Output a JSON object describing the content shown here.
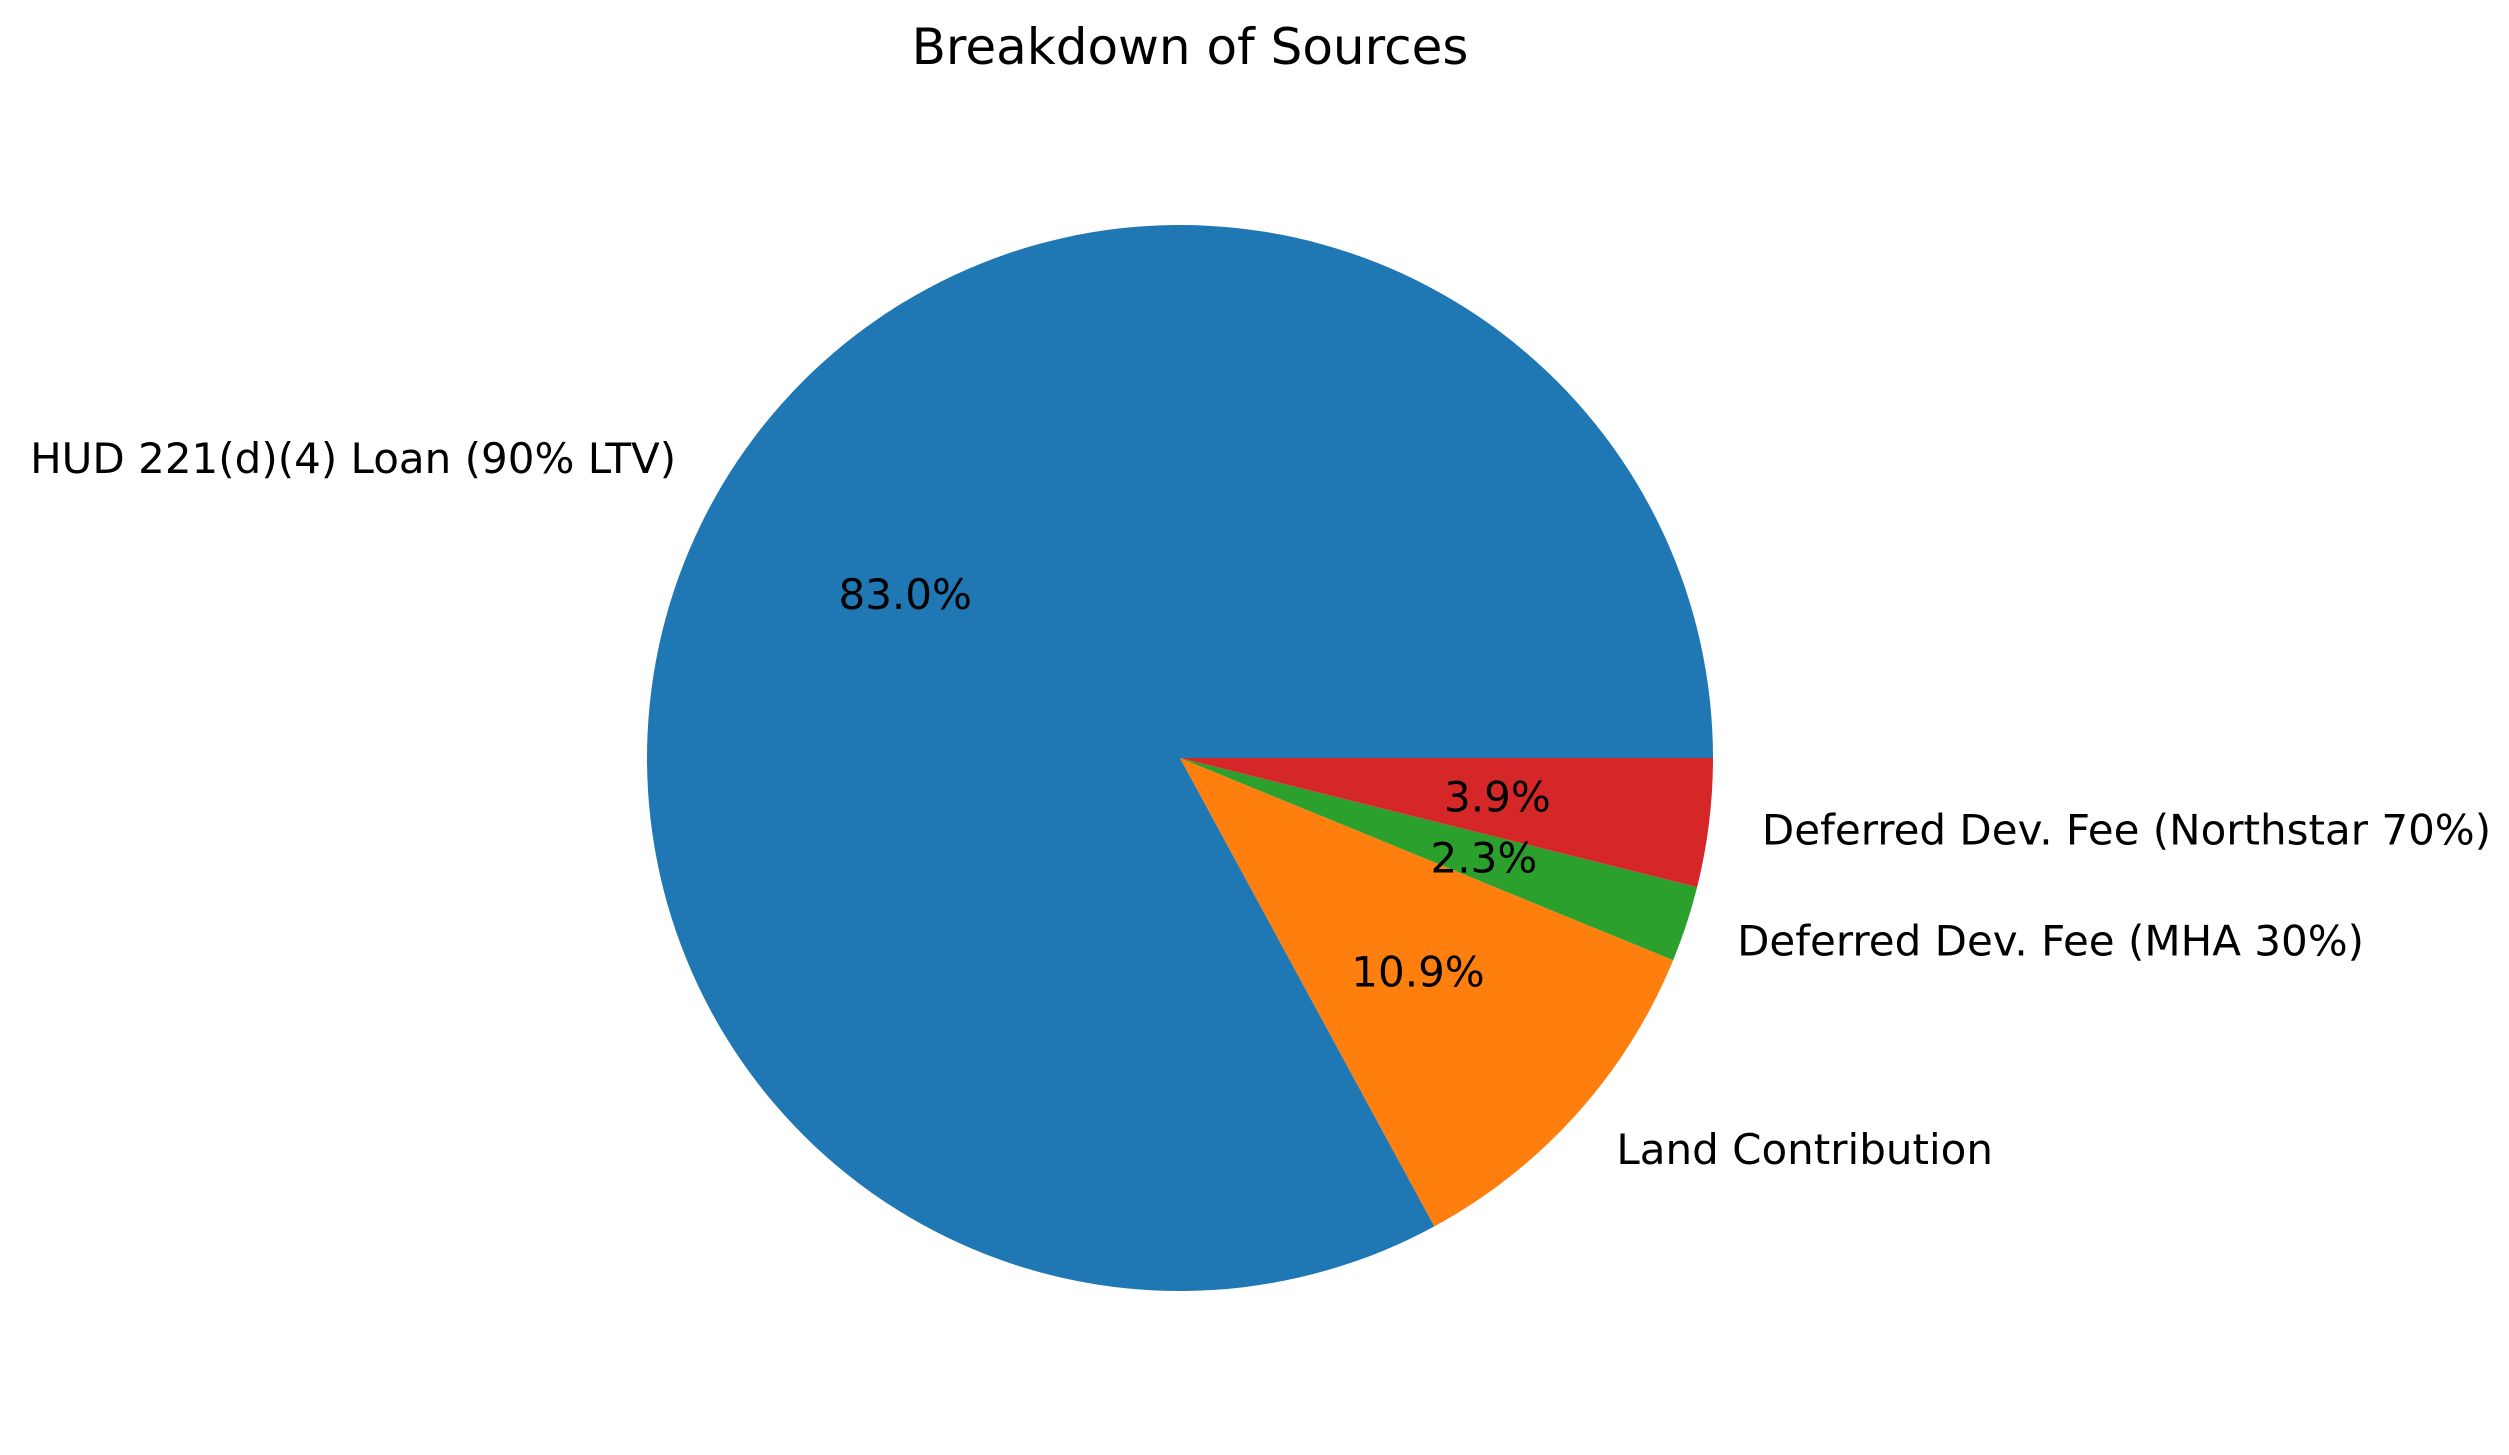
{
  "chart_data": {
    "type": "pie",
    "title": "Breakdown of Sources",
    "slices": [
      {
        "label": "HUD 221(d)(4) Loan (90% LTV)",
        "value": 83.0,
        "pct_label": "83.0%",
        "color": "#1f77b4"
      },
      {
        "label": "Land Contribution",
        "value": 10.9,
        "pct_label": "10.9%",
        "color": "#ff7f0e"
      },
      {
        "label": "Deferred Dev. Fee (MHA 30%)",
        "value": 2.3,
        "pct_label": "2.3%",
        "color": "#2ca02c"
      },
      {
        "label": "Deferred Dev. Fee (Northstar 70%)",
        "value": 3.9,
        "pct_label": "3.9%",
        "color": "#d62728"
      }
    ],
    "start_angle_deg": 0,
    "counterclockwise": true,
    "label_distance": 1.1,
    "pct_distance": 0.6,
    "legend": "none",
    "background_color": "#ffffff",
    "text_color": "#000000"
  }
}
